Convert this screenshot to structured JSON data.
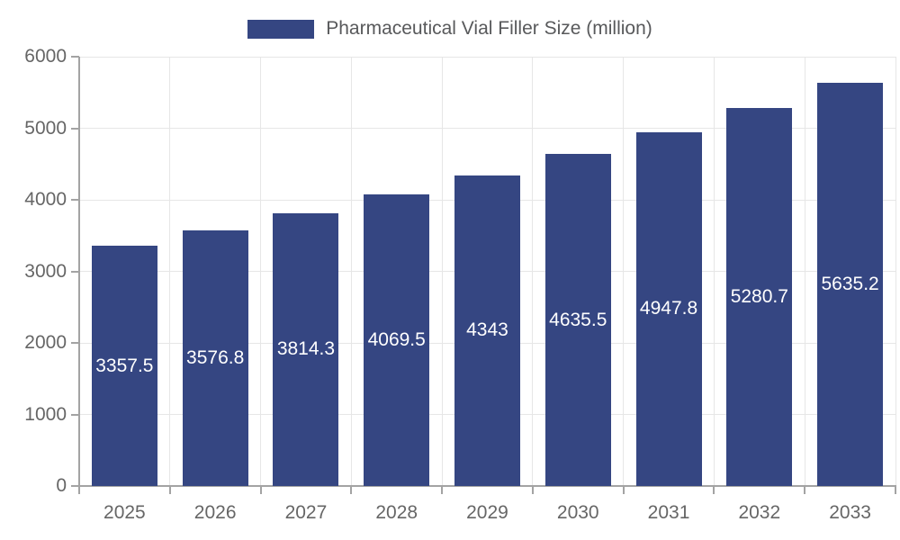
{
  "legend": {
    "label": "Pharmaceutical Vial Filler Size (million)"
  },
  "colors": {
    "bar": "#354682",
    "grid": "#e6e6e6",
    "axis": "#a3a3a3",
    "tick_text": "#666666",
    "value_label_text": "#ffffff",
    "legend_text": "#58595b",
    "background": "#ffffff"
  },
  "chart_data": {
    "type": "bar",
    "title": "Pharmaceutical Vial Filler Size (million)",
    "categories": [
      "2025",
      "2026",
      "2027",
      "2028",
      "2029",
      "2030",
      "2031",
      "2032",
      "2033"
    ],
    "values": [
      3357.5,
      3576.8,
      3814.3,
      4069.5,
      4343,
      4635.5,
      4947.8,
      5280.7,
      5635.2
    ],
    "value_labels": [
      "3357.5",
      "3576.8",
      "3814.3",
      "4069.5",
      "4343",
      "4635.5",
      "4947.8",
      "5280.7",
      "5635.2"
    ],
    "xlabel": "",
    "ylabel": "",
    "ylim": [
      0,
      6000
    ],
    "yticks": [
      0,
      1000,
      2000,
      3000,
      4000,
      5000,
      6000
    ],
    "ytick_labels": [
      "0",
      "1000",
      "2000",
      "3000",
      "4000",
      "5000",
      "6000"
    ],
    "grid": true,
    "legend_position": "top-center",
    "value_label_position": "inside-center"
  }
}
